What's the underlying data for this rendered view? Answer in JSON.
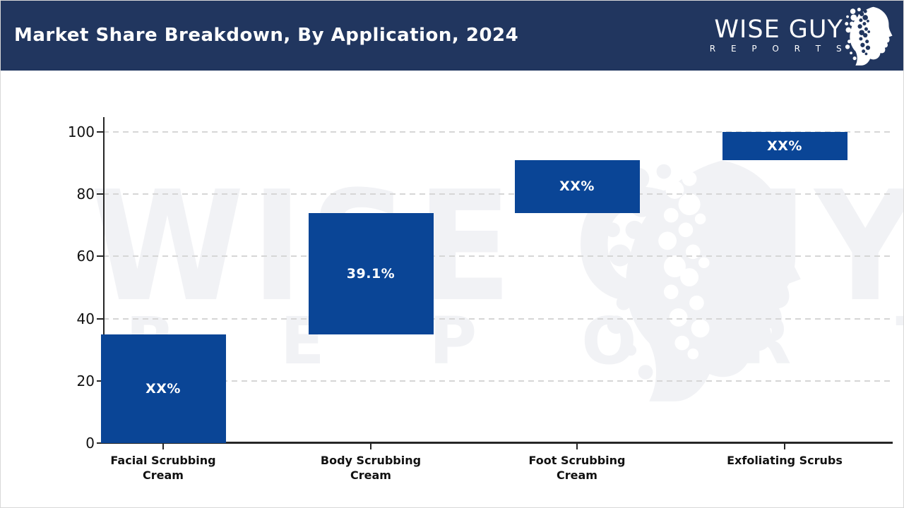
{
  "header": {
    "title": "Market Share Breakdown, By Application, 2024",
    "logo": {
      "line1": "WISE GUY",
      "line2": "R E P O R T S"
    }
  },
  "watermark": {
    "line1": "WISE GUY",
    "line2": "R E P O R T S"
  },
  "colors": {
    "header_bg": "#21365f",
    "bar": "#0a4596",
    "bar_label_text": "#ffffff",
    "grid": "#d6d6d6",
    "axis": "#262626",
    "watermark": "#f1f2f5",
    "title_text": "#ffffff",
    "tick_text": "#111111"
  },
  "chart_data": {
    "type": "bar",
    "subtype": "waterfall",
    "title": "Market Share Breakdown, By Application, 2024",
    "categories": [
      "Facial Scrubbing\nCream",
      "Body Scrubbing\nCream",
      "Foot Scrubbing\nCream",
      "Exfoliating Scrubs"
    ],
    "values": [
      34.9,
      39.1,
      16.9,
      9.1
    ],
    "starts": [
      0,
      34.9,
      74.0,
      90.9
    ],
    "bar_labels": [
      "XX%",
      "39.1%",
      "XX%",
      "XX%"
    ],
    "yticks": [
      0,
      20,
      40,
      60,
      80,
      100
    ],
    "ylim": [
      0,
      100
    ],
    "xlabel": "",
    "ylabel": "",
    "grid": "horizontal-dashed",
    "legend": "none"
  }
}
